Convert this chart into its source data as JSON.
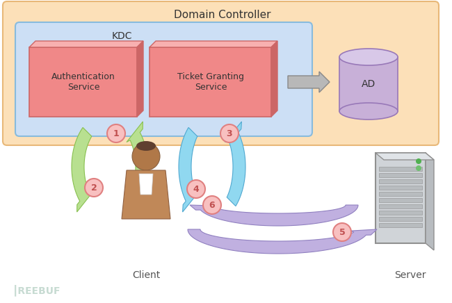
{
  "title": "Domain Controller",
  "kdc_label": "KDC",
  "as_label": "Authentication\nService",
  "tgs_label": "Ticket Granting\nService",
  "ad_label": "AD",
  "client_label": "Client",
  "server_label": "Server",
  "bg_color": "#ffffff",
  "dc_fill": "#fce0b8",
  "dc_edge": "#e8b878",
  "kdc_fill": "#ccdff5",
  "kdc_edge": "#88bbdd",
  "as_fill": "#f08888",
  "as_top": "#f8b0b0",
  "as_side": "#cc6666",
  "as_edge": "#cc6666",
  "tgs_fill": "#f08888",
  "tgs_top": "#f8b0b0",
  "tgs_side": "#cc6666",
  "tgs_edge": "#cc6666",
  "ad_fill": "#c8b0d8",
  "ad_edge": "#9878b8",
  "arrow_green": "#b8e090",
  "arrow_green_dark": "#88c050",
  "arrow_blue": "#90d8f0",
  "arrow_blue_dark": "#50a8d0",
  "arrow_purple": "#c0b0e0",
  "arrow_purple_dark": "#9080c0",
  "arrow_gray": "#b8b8b8",
  "arrow_gray_dark": "#888888",
  "num_fill": "#f8c0c0",
  "num_edge": "#e08080",
  "num_text": "#c05050",
  "freebuf_color": "#b0ccc0",
  "text_dark": "#333333",
  "text_mid": "#555555"
}
